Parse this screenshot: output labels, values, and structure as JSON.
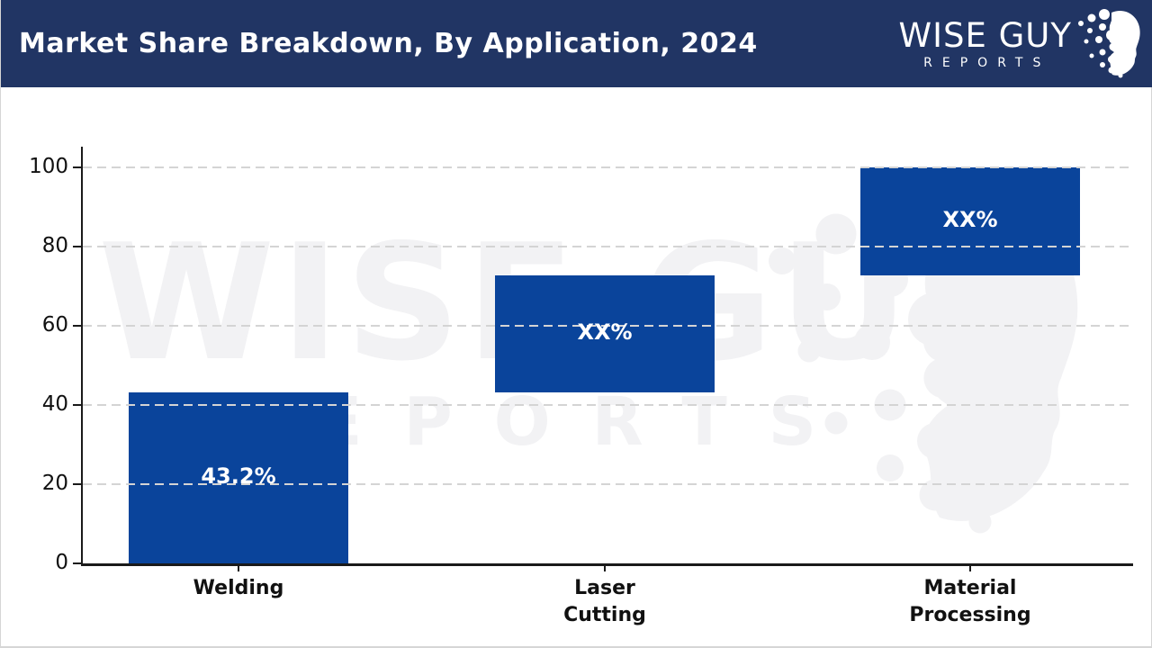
{
  "header": {
    "title": "Market Share Breakdown, By Application, 2024",
    "logo": {
      "wordmark": "WISE GUY",
      "subtext": "REPORTS"
    }
  },
  "watermark": {
    "line1": "WISE GUY",
    "line2": "REPORTS"
  },
  "chart_data": {
    "type": "bar",
    "subtype": "waterfall",
    "title": "Market Share Breakdown, By Application, 2024",
    "categories": [
      "Welding",
      "Laser Cutting",
      "Material Processing"
    ],
    "segments": [
      {
        "category": "Welding",
        "start": 0,
        "end": 43.2,
        "value": 43.2,
        "label": "43.2%"
      },
      {
        "category": "Laser Cutting",
        "start": 43.2,
        "end": 72.7,
        "value": 29.5,
        "label": "XX%"
      },
      {
        "category": "Material Processing",
        "start": 72.7,
        "end": 100,
        "value": 27.3,
        "label": "XX%"
      }
    ],
    "y_ticks": [
      0,
      20,
      40,
      60,
      80,
      100
    ],
    "ylim": [
      0,
      100
    ],
    "xlabel": "",
    "ylabel": "",
    "legend": "none",
    "grid": "horizontal-dashed",
    "bar_color": "#0a449b",
    "bar_label_color": "#ffffff",
    "axis_color": "#1a1a1a",
    "grid_color": "#d4d4d4"
  },
  "colors": {
    "header_bg": "#213564",
    "canvas_bg": "#ffffff",
    "watermark": "#f2f2f4",
    "border": "#d6d6d6"
  }
}
